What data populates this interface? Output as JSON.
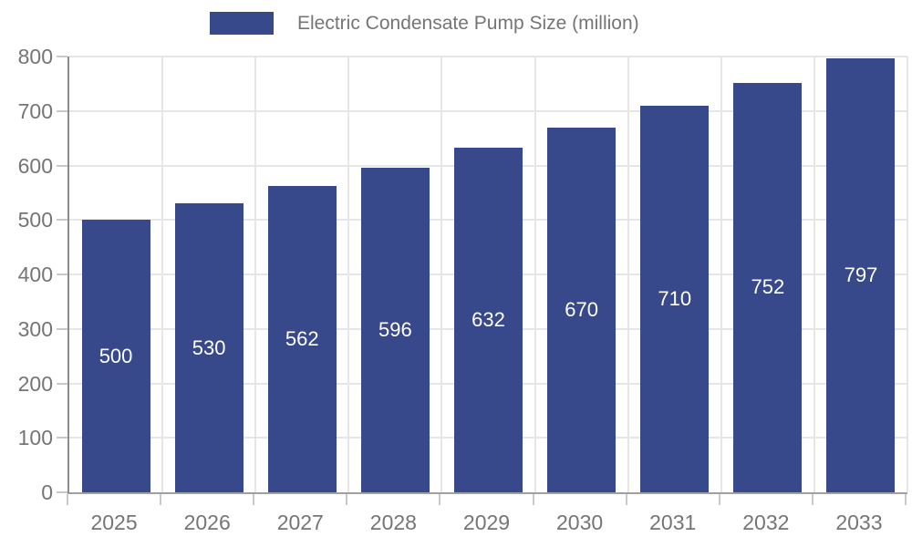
{
  "chart_data": {
    "type": "bar",
    "title": "Electric Condensate Pump Size (million)",
    "legend": {
      "entries": [
        "Electric Condensate Pump Size (million)"
      ],
      "position": "top"
    },
    "categories": [
      "2025",
      "2026",
      "2027",
      "2028",
      "2029",
      "2030",
      "2031",
      "2032",
      "2033"
    ],
    "series": [
      {
        "name": "Electric Condensate Pump Size (million)",
        "values": [
          500,
          530,
          562,
          596,
          632,
          670,
          710,
          752,
          797
        ]
      }
    ],
    "bar_labels": [
      "500",
      "530",
      "562",
      "596",
      "632",
      "670",
      "710",
      "752",
      "797"
    ],
    "xlabel": "",
    "ylabel": "",
    "ylim": [
      0,
      800
    ],
    "yticks": [
      0,
      100,
      200,
      300,
      400,
      500,
      600,
      700,
      800
    ],
    "grid": true,
    "colors": {
      "bar": "#37488b",
      "bar_label": "#ffffff",
      "axis_text": "#757575",
      "legend_text": "#757575",
      "gridline": "#e6e6e6",
      "axis_line": "#8c8c8c",
      "tick": "#c9c9c9",
      "background": "#ffffff"
    }
  }
}
